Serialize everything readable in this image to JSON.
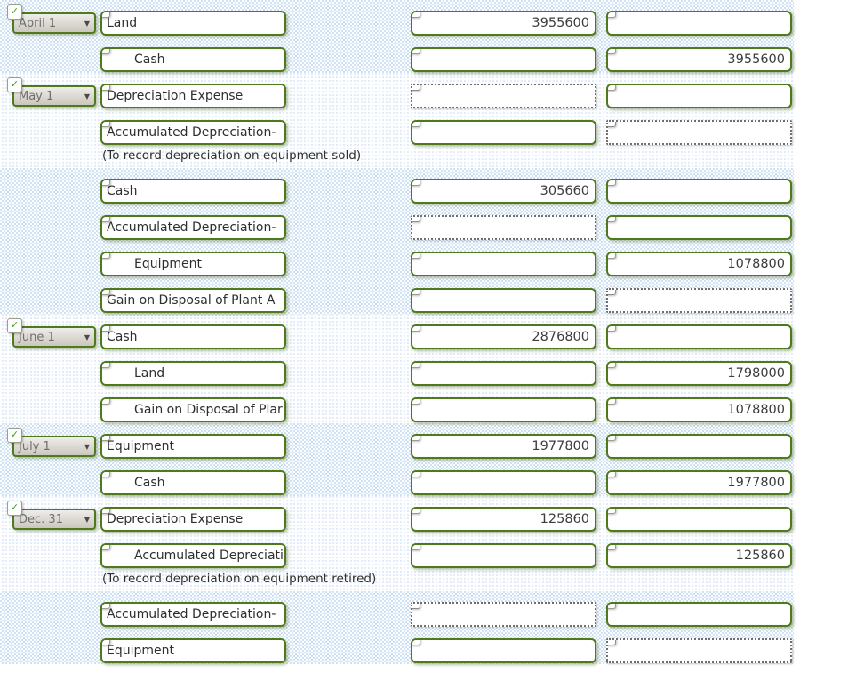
{
  "icons": {
    "correct": "✓",
    "incorrect": "✕",
    "dropdown": "▼"
  },
  "colors": {
    "input_border_green": "#4f7a1b",
    "dotted_border_grey": "#6e6e6e",
    "band_blue_dot": "#cfe1f4",
    "band_white_dot": "#e0ecf9",
    "check_green": "#3f9d1f",
    "x_grey": "#4a4a4a",
    "select_text": "#6f6f6f"
  },
  "entries": [
    {
      "band": "blue",
      "rows": [
        {
          "type": "line",
          "date": "April 1",
          "account": "Land",
          "indent": false,
          "debit": "3955600",
          "credit": "",
          "debit_state": "check",
          "credit_state": "check"
        },
        {
          "type": "line",
          "date": null,
          "account": "Cash",
          "indent": true,
          "debit": "",
          "credit": "3955600",
          "debit_state": "check",
          "credit_state": "check"
        }
      ]
    },
    {
      "band": "white",
      "rows": [
        {
          "type": "line",
          "date": "May 1",
          "account": "Depreciation Expense",
          "indent": false,
          "debit": "",
          "credit": "",
          "debit_state": "x",
          "credit_state": "check"
        },
        {
          "type": "line",
          "date": null,
          "account": "Accumulated Depreciation-",
          "indent": false,
          "debit": "",
          "credit": "",
          "debit_state": "check",
          "credit_state": "x"
        },
        {
          "type": "note",
          "text": "(To record depreciation on equipment sold)"
        }
      ]
    },
    {
      "band": "blue",
      "rows": [
        {
          "type": "line",
          "date": null,
          "account": "Cash",
          "indent": false,
          "debit": "305660",
          "credit": "",
          "debit_state": "check",
          "credit_state": "check"
        },
        {
          "type": "line",
          "date": null,
          "account": "Accumulated Depreciation-",
          "indent": false,
          "debit": "",
          "credit": "",
          "debit_state": "x",
          "credit_state": "check"
        },
        {
          "type": "line",
          "date": null,
          "account": "Equipment",
          "indent": true,
          "debit": "",
          "credit": "1078800",
          "debit_state": "check",
          "credit_state": "check"
        },
        {
          "type": "line",
          "date": null,
          "account": "Gain on Disposal of Plant A",
          "indent": false,
          "debit": "",
          "credit": "",
          "debit_state": "check",
          "credit_state": "x"
        }
      ]
    },
    {
      "band": "white",
      "rows": [
        {
          "type": "line",
          "date": "June 1",
          "account": "Cash",
          "indent": false,
          "debit": "2876800",
          "credit": "",
          "debit_state": "check",
          "credit_state": "check"
        },
        {
          "type": "line",
          "date": null,
          "account": "Land",
          "indent": true,
          "debit": "",
          "credit": "1798000",
          "debit_state": "check",
          "credit_state": "check"
        },
        {
          "type": "line",
          "date": null,
          "account": "Gain on Disposal of Plar",
          "indent": true,
          "debit": "",
          "credit": "1078800",
          "debit_state": "check",
          "credit_state": "check"
        }
      ]
    },
    {
      "band": "blue",
      "rows": [
        {
          "type": "line",
          "date": "July 1",
          "account": "Equipment",
          "indent": false,
          "debit": "1977800",
          "credit": "",
          "debit_state": "check",
          "credit_state": "check"
        },
        {
          "type": "line",
          "date": null,
          "account": "Cash",
          "indent": true,
          "debit": "",
          "credit": "1977800",
          "debit_state": "check",
          "credit_state": "check"
        }
      ]
    },
    {
      "band": "white",
      "rows": [
        {
          "type": "line",
          "date": "Dec. 31",
          "account": "Depreciation Expense",
          "indent": false,
          "debit": "125860",
          "credit": "",
          "debit_state": "check",
          "credit_state": "check"
        },
        {
          "type": "line",
          "date": null,
          "account": "Accumulated Depreciati",
          "indent": true,
          "debit": "",
          "credit": "125860",
          "debit_state": "check",
          "credit_state": "check"
        },
        {
          "type": "note",
          "text": "(To record depreciation on equipment retired)"
        }
      ]
    },
    {
      "band": "blue",
      "rows": [
        {
          "type": "line",
          "date": null,
          "account": "Accumulated Depreciation-",
          "indent": false,
          "debit": "",
          "credit": "",
          "debit_state": "x",
          "credit_state": "check"
        },
        {
          "type": "line",
          "date": null,
          "account": "Equipment",
          "indent": false,
          "debit": "",
          "credit": "",
          "debit_state": "check",
          "credit_state": "x"
        }
      ]
    }
  ]
}
